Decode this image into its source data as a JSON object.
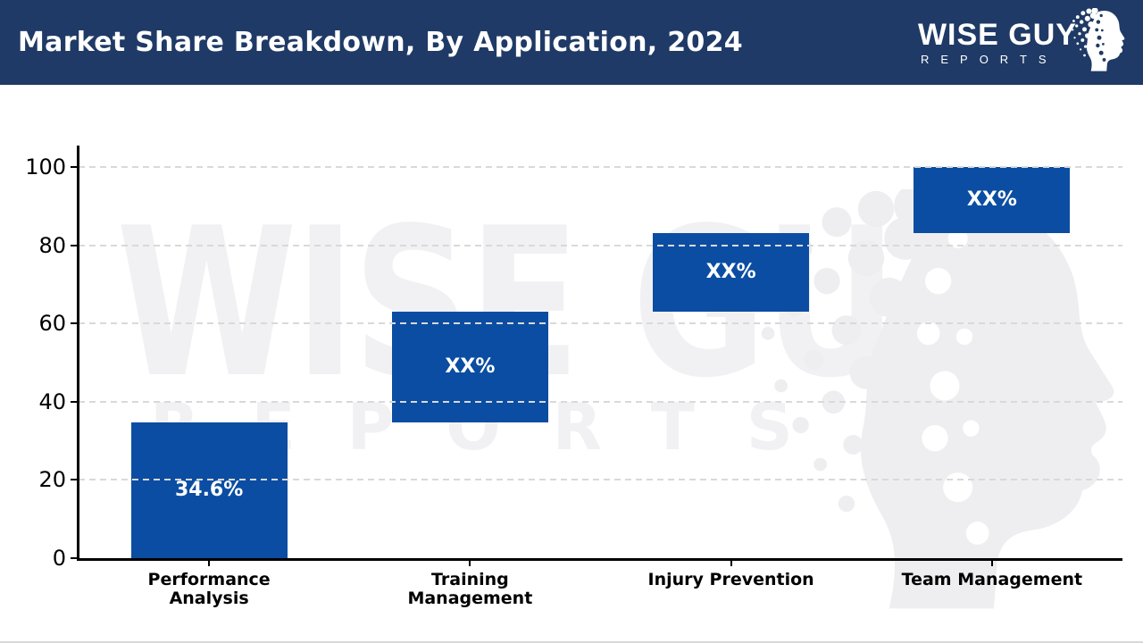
{
  "header": {
    "title": "Market Share Breakdown, By Application, 2024",
    "bg_color": "#1f3a66",
    "logo": {
      "line1": "WISE GUY",
      "line2": "REPORTS"
    }
  },
  "watermark": {
    "line1": "WISE GUY",
    "line2": "REPORTS"
  },
  "chart_data": {
    "type": "bar",
    "subtype": "waterfall-floating-bars",
    "title": "Market Share Breakdown, By Application, 2024",
    "categories": [
      "Performance Analysis",
      "Training Management",
      "Injury Prevention",
      "Team Management"
    ],
    "segments": [
      {
        "category": "Performance Analysis",
        "lines": [
          "Performance",
          "Analysis"
        ],
        "start": 0,
        "end": 34.6,
        "label": "34.6%"
      },
      {
        "category": "Training Management",
        "lines": [
          "Training",
          "Management"
        ],
        "start": 34.6,
        "end": 63,
        "label": "XX%"
      },
      {
        "category": "Injury Prevention",
        "lines": [
          "Injury Prevention"
        ],
        "start": 63,
        "end": 83,
        "label": "XX%"
      },
      {
        "category": "Team Management",
        "lines": [
          "Team Management"
        ],
        "start": 83,
        "end": 100,
        "label": "XX%"
      }
    ],
    "ylim": [
      0,
      100
    ],
    "yticks": [
      0,
      20,
      40,
      60,
      80,
      100
    ],
    "ytick_labels": [
      "0",
      "20",
      "40",
      "60",
      "80",
      "100"
    ],
    "grid": "horizontal dashed",
    "grid_color": "#d9d9d9",
    "bar_color": "#0b4da2",
    "bar_label_color": "#ffffff",
    "axis_color": "#000000",
    "xlabel": "",
    "ylabel": "",
    "legend": null
  }
}
